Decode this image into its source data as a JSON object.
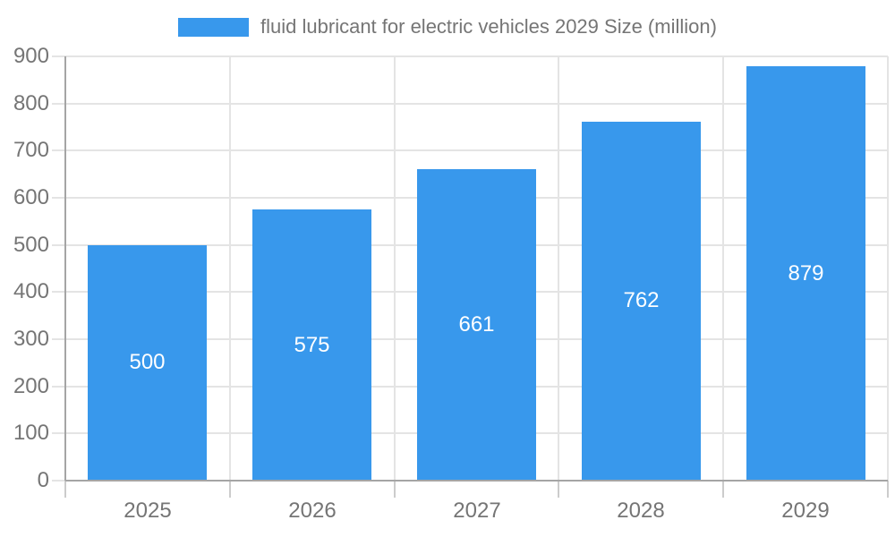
{
  "chart_data": {
    "type": "bar",
    "title": "fluid lubricant for electric vehicles 2029 Size (million)",
    "legend_entries": [
      "fluid lubricant for electric vehicles 2029 Size (million)"
    ],
    "legend_position": "top",
    "categories": [
      "2025",
      "2026",
      "2027",
      "2028",
      "2029"
    ],
    "series": [
      {
        "name": "fluid lubricant for electric vehicles 2029 Size (million)",
        "values": [
          500,
          575,
          661,
          762,
          879
        ]
      }
    ],
    "value_labels": [
      "500",
      "575",
      "661",
      "762",
      "879"
    ],
    "xlabel": "",
    "ylabel": "",
    "ylim": [
      0,
      900
    ],
    "ytick_step": 100,
    "ytick_labels": [
      "0",
      "100",
      "200",
      "300",
      "400",
      "500",
      "600",
      "700",
      "800",
      "900"
    ],
    "grid": true,
    "colors": {
      "bar": "#3898EC",
      "grid": "#E4E4E4",
      "axis_line": "#A5A5A5",
      "tick": "#CCCCCC",
      "axis_text": "#757575",
      "value_text": "#FFFFFF",
      "background": "#FFFFFF"
    }
  }
}
